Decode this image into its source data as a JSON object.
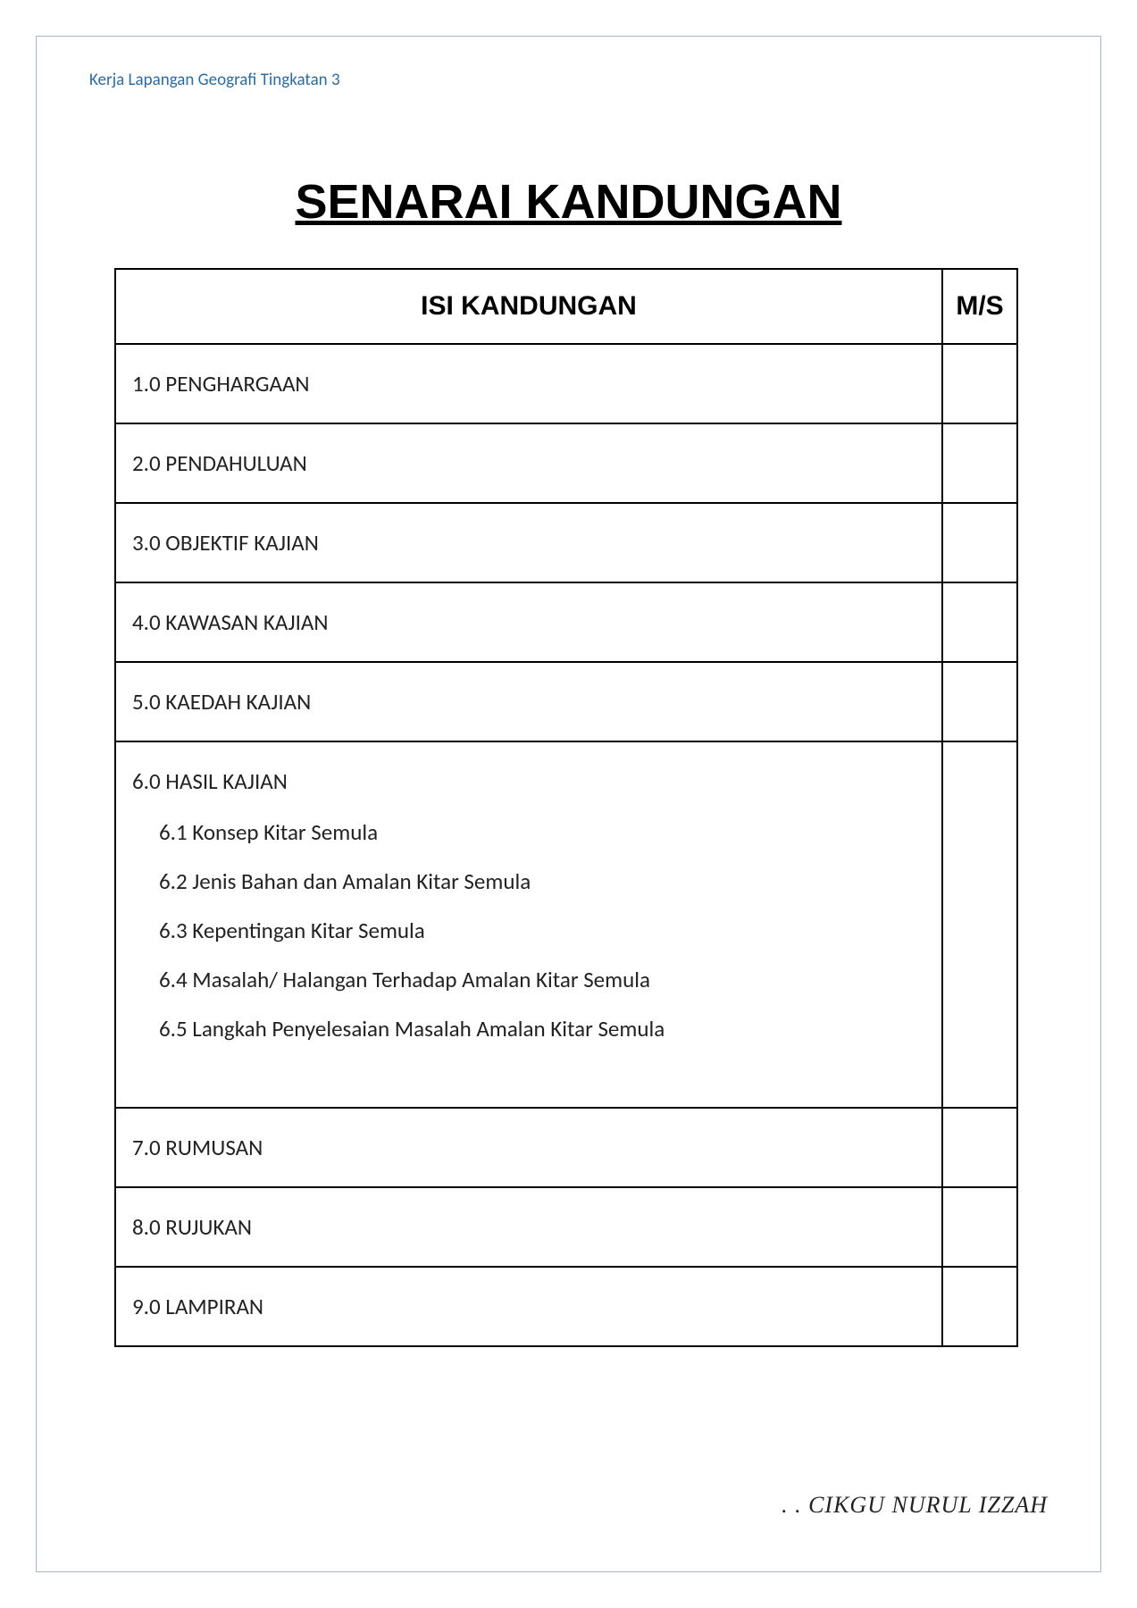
{
  "header": {
    "text": "Kerja Lapangan Geografi Tingkatan 3",
    "color": "#2e6ba1"
  },
  "title": "SENARAI KANDUNGAN",
  "table": {
    "columns": {
      "content": "ISI KANDUNGAN",
      "page": "M/S"
    },
    "rows": [
      {
        "label": "1.0 PENGHARGAAN",
        "ms": ""
      },
      {
        "label": "2.0 PENDAHULUAN",
        "ms": ""
      },
      {
        "label": "3.0 OBJEKTIF KAJIAN",
        "ms": ""
      },
      {
        "label": "4.0  KAWASAN KAJIAN",
        "ms": ""
      },
      {
        "label": "5.0 KAEDAH KAJIAN",
        "ms": ""
      },
      {
        "label": "6.0 HASIL KAJIAN",
        "ms": "",
        "subs": [
          "6.1 Konsep Kitar Semula",
          "6.2 Jenis Bahan dan Amalan Kitar Semula",
          "6.3 Kepentingan Kitar Semula",
          "6.4 Masalah/ Halangan Terhadap Amalan Kitar Semula",
          "6.5 Langkah Penyelesaian Masalah Amalan Kitar Semula"
        ]
      },
      {
        "label": "7.0 RUMUSAN",
        "ms": ""
      },
      {
        "label": "8.0 RUJUKAN",
        "ms": ""
      },
      {
        "label": "9.0 LAMPIRAN",
        "ms": ""
      }
    ]
  },
  "footer": {
    "signature": ". . CIKGU NURUL IZZAH"
  },
  "colors": {
    "border": "#a8b8c8",
    "text": "#222222",
    "header_text": "#2e6ba1",
    "table_border": "#000000",
    "background": "#ffffff"
  }
}
